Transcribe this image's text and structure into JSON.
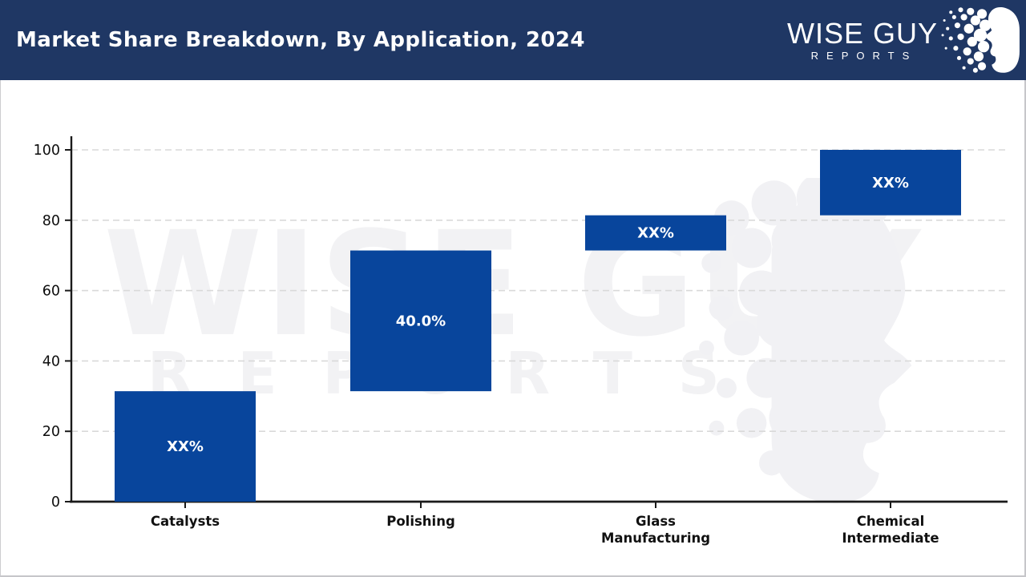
{
  "header": {
    "title": "Market Share Breakdown, By Application, 2024",
    "bg_color": "#1F3764",
    "logo": {
      "line1": "WISE GUY",
      "line2": "REPORTS"
    }
  },
  "watermark": {
    "line1": "WISE GUY",
    "line2": "REPORTS"
  },
  "chart_data": {
    "type": "bar",
    "subtype": "waterfall",
    "title": "Market Share Breakdown, By Application, 2024",
    "categories": [
      [
        "Catalysts"
      ],
      [
        "Polishing"
      ],
      [
        "Glass",
        "Manufacturing"
      ],
      [
        "Chemical",
        "Intermediate"
      ]
    ],
    "bars": [
      {
        "category": "Catalysts",
        "start": 0,
        "end": 31.4,
        "label": "XX%"
      },
      {
        "category": "Polishing",
        "start": 31.4,
        "end": 71.4,
        "label": "40.0%"
      },
      {
        "category": "Glass Manufacturing",
        "start": 71.4,
        "end": 81.4,
        "label": "XX%"
      },
      {
        "category": "Chemical Intermediate",
        "start": 81.4,
        "end": 100,
        "label": "XX%"
      }
    ],
    "yticks": [
      0,
      20,
      40,
      60,
      80,
      100
    ],
    "ylim": [
      0,
      104
    ],
    "grid": true,
    "legend": false,
    "bar_color": "#08459C",
    "grid_color": "#D9D9D9",
    "axis_color": "#1A1A1A",
    "tick_label_color": "#0D0D0D",
    "bar_label_color": "#FFFFFF"
  }
}
